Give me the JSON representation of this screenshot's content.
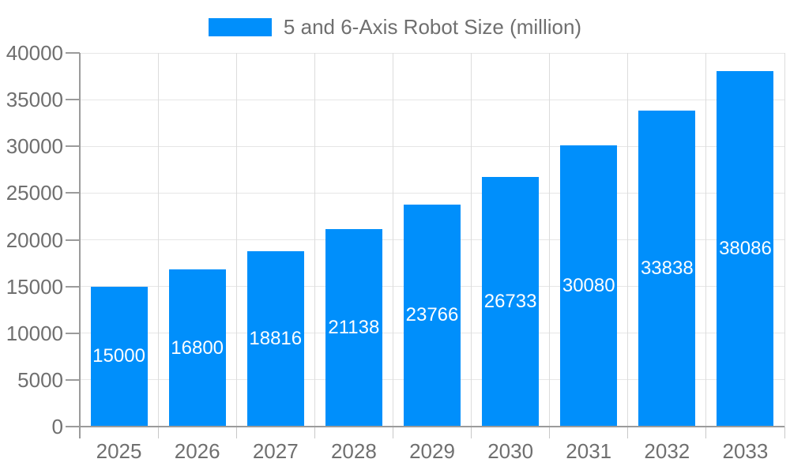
{
  "legend": {
    "swatch_color": "#008ffb"
  },
  "chart_data": {
    "type": "bar",
    "title": "5 and 6-Axis Robot Size (million)",
    "categories": [
      "2025",
      "2026",
      "2027",
      "2028",
      "2029",
      "2030",
      "2031",
      "2032",
      "2033"
    ],
    "series": [
      {
        "name": "5 and 6-Axis Robot Size (million)",
        "values": [
          15000,
          16800,
          18816,
          21138,
          23766,
          26733,
          30080,
          33838,
          38086
        ],
        "color": "#008ffb"
      }
    ],
    "value_labels": [
      15000,
      16800,
      18816,
      21138,
      23766,
      26733,
      30080,
      33838,
      38086
    ],
    "xlabel": "",
    "ylabel": "",
    "ylim": [
      0,
      40000
    ],
    "yticks": [
      0,
      5000,
      10000,
      15000,
      20000,
      25000,
      30000,
      35000,
      40000
    ],
    "grid": "horizontal and vertical category boundaries",
    "legend_position": "top-center",
    "value_label_style": "white, centered inside bar"
  },
  "colors": {
    "bar": "#008ffb",
    "axis_text": "#6f6f6f",
    "legend_text": "#6f6f6f",
    "grid_horizontal": "#e6e6e6",
    "grid_vertical": "#dcdcdc",
    "axis_line": "#9b9b9b",
    "value_label": "#ffffff",
    "background": "#ffffff"
  }
}
